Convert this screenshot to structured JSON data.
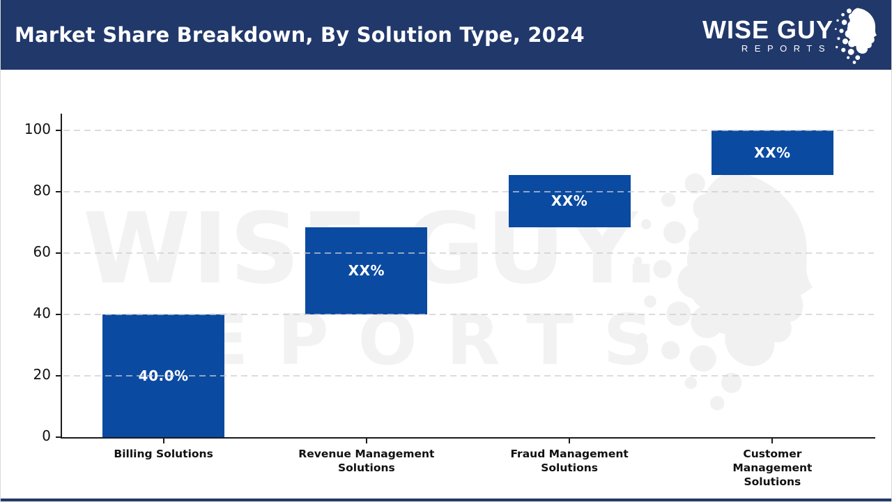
{
  "header": {
    "title": "Market Share Breakdown, By Solution Type, 2024",
    "logo": {
      "wordmark": "WISE GUY",
      "sub": "REPORTS"
    }
  },
  "watermark": {
    "line1": "WISE GUY.",
    "line2": "REPORTS"
  },
  "chart_data": {
    "type": "bar",
    "variant": "waterfall",
    "title": "Market Share Breakdown, By Solution Type, 2024",
    "categories": [
      "Billing Solutions",
      "Revenue Management\nSolutions",
      "Fraud Management\nSolutions",
      "Customer\nManagement\nSolutions"
    ],
    "segments": [
      {
        "category": "Billing Solutions",
        "start": 0,
        "end": 40,
        "value_label": "40.0%"
      },
      {
        "category": "Revenue Management Solutions",
        "start": 40,
        "end": 68.5,
        "value_label": "XX%"
      },
      {
        "category": "Fraud Management Solutions",
        "start": 68.5,
        "end": 85.5,
        "value_label": "XX%"
      },
      {
        "category": "Customer Management Solutions",
        "start": 85.5,
        "end": 100,
        "value_label": "XX%"
      }
    ],
    "xlabel": "",
    "ylabel": "",
    "ylim": [
      0,
      100
    ],
    "yticks": [
      0,
      20,
      40,
      60,
      80,
      100
    ],
    "grid": "horizontal-dashed",
    "legend": "none",
    "bar_color": "#0a4aa1",
    "bar_label_color": "#ffffff"
  },
  "colors": {
    "header_bg": "#21386b",
    "footer_bg": "#21386b",
    "bar": "#0a4aa1",
    "gridline": "#cdcdcd",
    "axis": "#1a1a1a",
    "watermark": "#f2f2f2"
  }
}
